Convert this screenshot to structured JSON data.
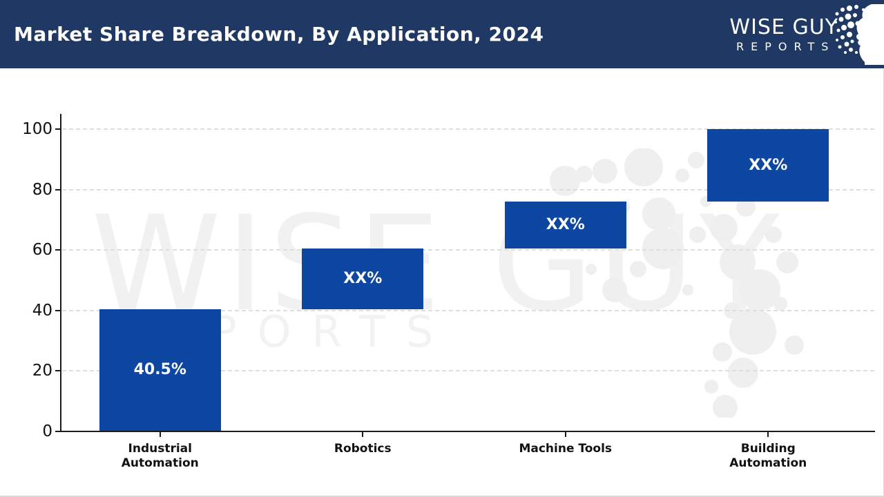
{
  "header": {
    "title": "Market Share Breakdown, By Application, 2024",
    "background_color": "#1f3864",
    "logo": {
      "line1": "WISE GUY",
      "line2": "REPORTS",
      "icon": "dotted-face-profile"
    }
  },
  "watermark": {
    "line1": "WISE GUY",
    "line2": "REPORTS",
    "icon": "dotted-face-profile"
  },
  "chart_data": {
    "type": "bar",
    "subtype": "waterfall",
    "title": "Market Share Breakdown, By Application, 2024",
    "categories": [
      "Industrial Automation",
      "Robotics",
      "Machine Tools",
      "Building Automation"
    ],
    "segments": [
      {
        "category": "Industrial Automation",
        "start": 0,
        "end": 40.5,
        "label": "40.5%"
      },
      {
        "category": "Robotics",
        "start": 40.5,
        "end": 60.5,
        "label": "XX%"
      },
      {
        "category": "Machine Tools",
        "start": 60.5,
        "end": 76,
        "label": "XX%"
      },
      {
        "category": "Building Automation",
        "start": 76,
        "end": 100,
        "label": "XX%"
      }
    ],
    "ylim": [
      0,
      100
    ],
    "yticks": [
      0,
      20,
      40,
      60,
      80,
      100
    ],
    "xlabel": "",
    "ylabel": "",
    "grid": "horizontal-dashed",
    "legend": "none",
    "bar_color": "#0d47a1",
    "bar_label_color": "#ffffff"
  }
}
